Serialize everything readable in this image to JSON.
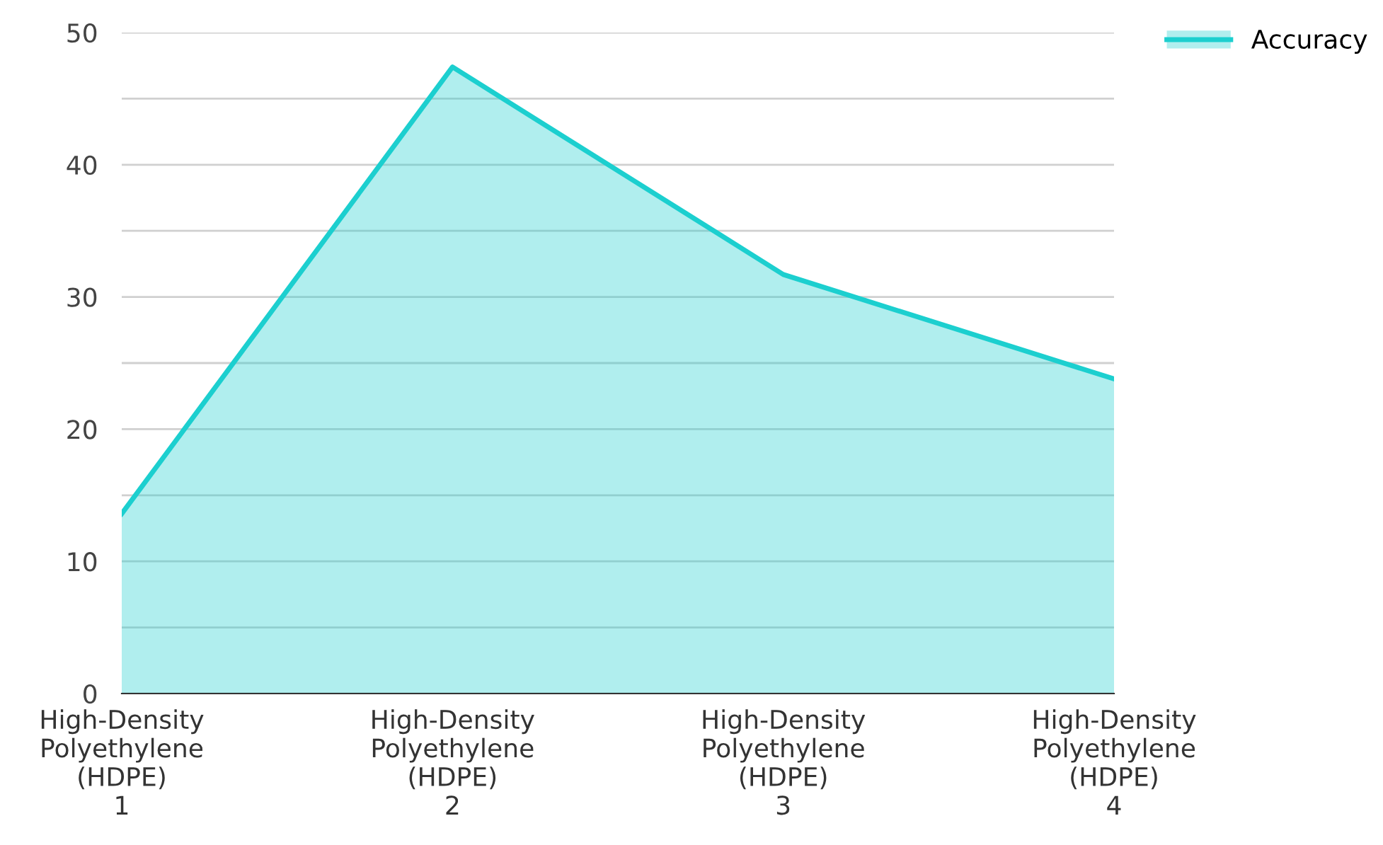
{
  "chart_data": {
    "type": "area",
    "categories": [
      "High-Density Polyethylene (HDPE) 1",
      "High-Density Polyethylene (HDPE) 2",
      "High-Density Polyethylene (HDPE) 3",
      "High-Density Polyethylene (HDPE) 4"
    ],
    "series": [
      {
        "name": "Accuracy",
        "color": "#1ccfcf",
        "values": [
          13.6,
          47.4,
          31.7,
          23.8
        ]
      }
    ],
    "ylim": [
      0,
      50
    ],
    "yticks": [
      0,
      {
        "value": 5,
        "label": null
      },
      10,
      {
        "value": 15,
        "label": null
      },
      20,
      {
        "value": 25,
        "label": null
      },
      30,
      {
        "value": 35,
        "label": null
      },
      40,
      {
        "value": 45,
        "label": null
      },
      50
    ],
    "grid": "y",
    "legend": "top right",
    "marker": "none",
    "line_style": "solid"
  }
}
